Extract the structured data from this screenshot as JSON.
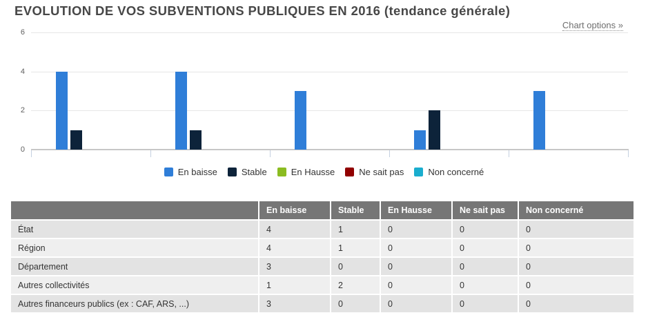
{
  "header": {
    "title": "EVOLUTION DE VOS SUBVENTIONS PUBLIQUES EN 2016 (tendance générale)",
    "chart_options_label": "Chart options »"
  },
  "chart_data": {
    "type": "bar",
    "title": "EVOLUTION DE VOS SUBVENTIONS PUBLIQUES EN 2016 (tendance générale)",
    "categories": [
      "État",
      "Région",
      "Département",
      "Autres collectivités",
      "Autres financeurs publics (ex : CAF, ARS, ...)"
    ],
    "series": [
      {
        "name": "En baisse",
        "color": "#2f7ed8",
        "values": [
          4,
          4,
          3,
          1,
          3
        ]
      },
      {
        "name": "Stable",
        "color": "#0d233a",
        "values": [
          1,
          1,
          0,
          2,
          0
        ]
      },
      {
        "name": "En Hausse",
        "color": "#8bbc21",
        "values": [
          0,
          0,
          0,
          0,
          0
        ]
      },
      {
        "name": "Ne sait pas",
        "color": "#910000",
        "values": [
          0,
          0,
          0,
          0,
          0
        ]
      },
      {
        "name": "Non concerné",
        "color": "#1aadce",
        "values": [
          0,
          0,
          0,
          0,
          0
        ]
      }
    ],
    "yticks": [
      0,
      2,
      4,
      6
    ],
    "ylim": [
      0,
      6
    ],
    "grid": true,
    "legend_position": "bottom",
    "xlabel": "",
    "ylabel": ""
  },
  "table": {
    "columns": [
      "",
      "En baisse",
      "Stable",
      "En Hausse",
      "Ne sait pas",
      "Non concerné"
    ],
    "rows": [
      {
        "label": "État",
        "values": [
          4,
          1,
          0,
          0,
          0
        ]
      },
      {
        "label": "Région",
        "values": [
          4,
          1,
          0,
          0,
          0
        ]
      },
      {
        "label": "Département",
        "values": [
          3,
          0,
          0,
          0,
          0
        ]
      },
      {
        "label": "Autres collectivités",
        "values": [
          1,
          2,
          0,
          0,
          0
        ]
      },
      {
        "label": "Autres financeurs publics (ex : CAF, ARS, ...)",
        "values": [
          3,
          0,
          0,
          0,
          0
        ]
      }
    ]
  }
}
